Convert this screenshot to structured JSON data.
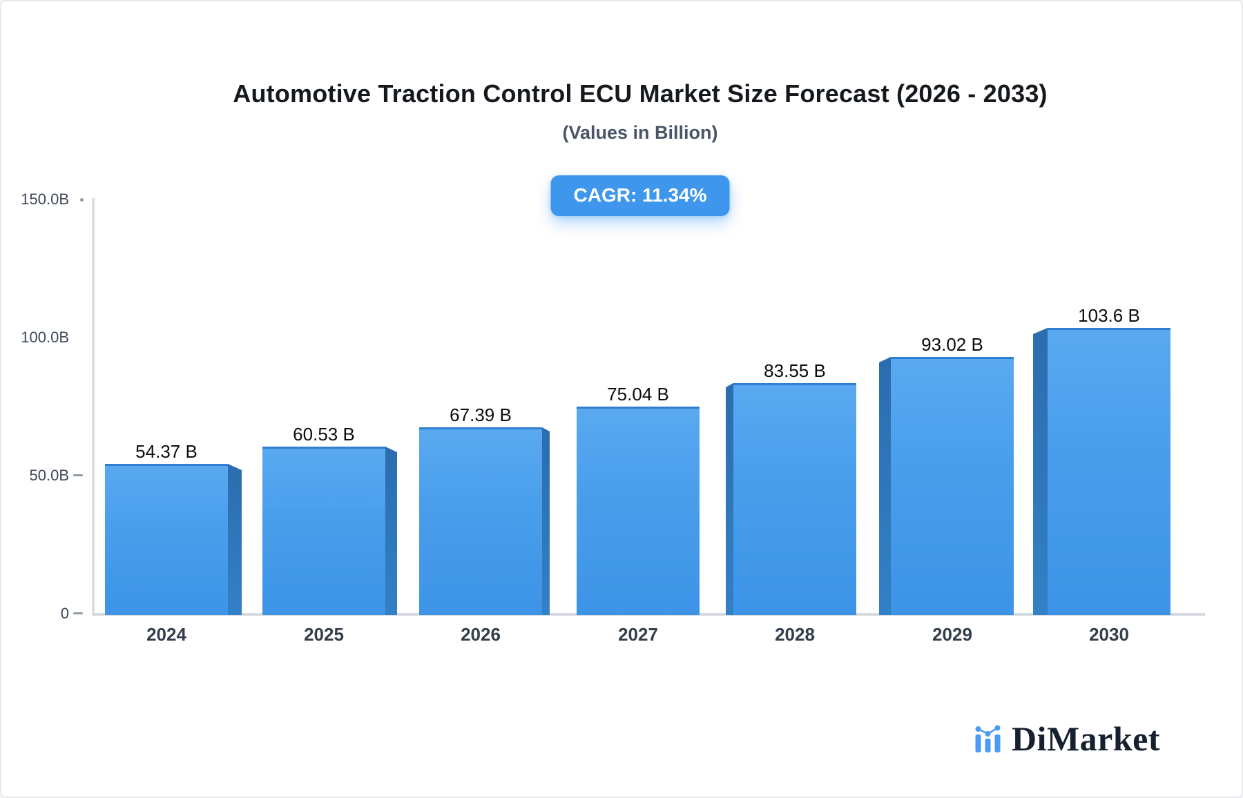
{
  "header": {
    "title": "Automotive Traction Control ECU Market Size Forecast (2026 - 2033)",
    "subtitle": "(Values in Billion)",
    "cagr_badge": "CAGR: 11.34%"
  },
  "chart_data": {
    "type": "bar",
    "title": "Automotive Traction Control ECU Market Size Forecast (2026 - 2033)",
    "subtitle": "(Values in Billion)",
    "categories": [
      "2024",
      "2025",
      "2026",
      "2027",
      "2028",
      "2029",
      "2030"
    ],
    "values": [
      54.37,
      60.53,
      67.39,
      75.04,
      83.55,
      93.02,
      103.6
    ],
    "value_labels": [
      "54.37 B",
      "60.53 B",
      "67.39 B",
      "75.04 B",
      "83.55 B",
      "93.02 B",
      "103.6 B"
    ],
    "y_ticks": [
      {
        "label": "150.0B",
        "value": 150
      },
      {
        "label": "100.0B",
        "value": 100
      },
      {
        "label": "50.0B",
        "value": 50
      },
      {
        "label": "0",
        "value": 0
      }
    ],
    "ylim": [
      0,
      150
    ],
    "xlabel": "",
    "ylabel": "",
    "grid": false,
    "legend": false,
    "annotations": [
      "CAGR: 11.34%"
    ],
    "style": "3d-perspective-bars"
  },
  "logo": {
    "brand": "DiMarket",
    "icon": "bar-chart-logo-icon"
  },
  "colors": {
    "badge_bg": "#3e97ed",
    "badge_text": "#ffffff",
    "bar_face_top": "#5aa9f0",
    "bar_face_mid": "#4a9fec",
    "bar_face_bottom": "#3d93e6",
    "bar_top_edge": "#2e7fd1",
    "bar_side_top": "#2b6daf",
    "bar_side_bottom": "#3280c6",
    "axis_line": "#dbdee3",
    "tick_mark": "#9199a3",
    "y_label": "#3e4858",
    "x_label": "#333d4b",
    "value_label": "#0a0c0f",
    "title": "#15191e",
    "subtitle": "#4a5466",
    "logo_blue": "#4b9af5",
    "logo_text": "#16202e",
    "background": "#ffffff"
  }
}
